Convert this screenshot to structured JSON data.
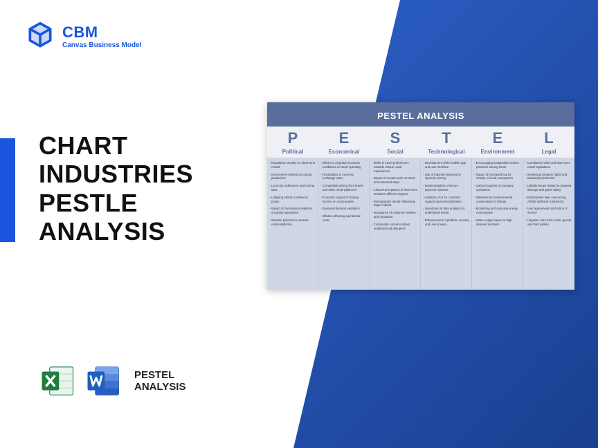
{
  "brand": {
    "title": "CBM",
    "subtitle": "Canvas Business Model",
    "color": "#1a56db"
  },
  "main_title": "CHART\nINDUSTRIES\nPESTLE\nANALYSIS",
  "icon_label": "PESTEL\nANALYSIS",
  "accent_color": "#1a56db",
  "bg_gradient": {
    "from": "#2b5fc7",
    "to": "#1a3f8f"
  },
  "pestel": {
    "title": "PESTEL ANALYSIS",
    "header_bg": "#5a6e9e",
    "letter_color": "#5a6e9e",
    "body_bg": "#cfd6e6",
    "columns": [
      {
        "letter": "P",
        "name": "Political",
        "items": [
          "Regulatory scrutiny on short-term rentals",
          "Government restrictions during pandemics",
          "Local city ordinances and zoning laws",
          "Lobbying efforts to influence policy",
          "Impact of international relations on global operations",
          "Taxation policies for vacation rental platforms"
        ]
      },
      {
        "letter": "E",
        "name": "Economical",
        "items": [
          "Influence of global economic conditions on travel spending",
          "Fluctuations in currency exchange rates",
          "Competitive pricing from hotels and other rental platforms",
          "Economic impact of hosting income on communities",
          "Seasonal demand variations",
          "Inflation affecting operational costs"
        ]
      },
      {
        "letter": "S",
        "name": "Social",
        "items": [
          "Shifts in travel preferences towards unique, local experiences",
          "Impact of remote work on travel and extended stays",
          "Cultural acceptance of short-term rentals in different regions",
          "Demographic trends influencing target market",
          "Importance of customer reviews and reputation",
          "Community concerns about neighborhood disruption"
        ]
      },
      {
        "letter": "T",
        "name": "Technological",
        "items": [
          "Development of the mobile app and user interface",
          "Use of machine learning for dynamic pricing",
          "Implementation of secure payment systems",
          "Adoption of AI for customer support and personalization",
          "Investment in data analytics to understand trends",
          "Enhancement of platform security and user privacy"
        ]
      },
      {
        "letter": "E",
        "name": "Environment",
        "items": [
          "Encouraging sustainable tourism practices among hosts",
          "Impact of increased tourist activity on local ecosystems",
          "Carbon footprint of company operations",
          "Initiatives for environmental conservation in listings",
          "Monitoring and reducing energy consumption",
          "Water usage impact in high-demand locations"
        ]
      },
      {
        "letter": "L",
        "name": "Legal",
        "items": [
          "Compliance with local short-term rental regulations",
          "Intellectual property rights and trademark protection",
          "Liability issues related to property damage and guest safety",
          "Employment laws concerning Airbnb staff and contractors",
          "User agreements and terms of service",
          "Litigation risks from hosts, guests, and third parties"
        ]
      }
    ]
  },
  "app_icons": {
    "excel_color": "#1e7e3e",
    "word_color": "#1e5fbf"
  }
}
